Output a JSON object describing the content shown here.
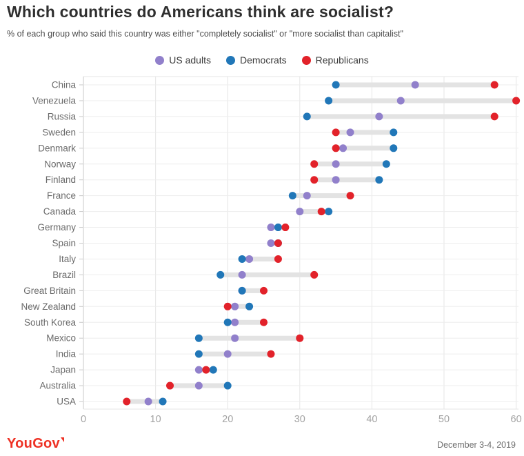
{
  "header": {
    "title": "Which countries do Americans think are socialist?",
    "subtitle": "% of each group who said this country was either \"completely socialist\" or \"more socialist than capitalist\""
  },
  "footer": {
    "brand": "YouGov",
    "date": "December 3-4, 2019"
  },
  "chart_data": {
    "type": "scatter",
    "subtype": "dumbbell-dot-plot",
    "title": "Which countries do Americans think are socialist?",
    "subtitle": "% of each group who said this country was either \"completely socialist\" or \"more socialist than capitalist\"",
    "xlabel": "",
    "ylabel": "",
    "xlim": [
      0,
      60
    ],
    "xticks": [
      0,
      10,
      20,
      30,
      40,
      50,
      60
    ],
    "grid": "vertical gridlines at each tick, faint horizontal line per category row",
    "legend_position": "top-center",
    "connector": "light gray bar spanning min to max value in each row",
    "categories": [
      "China",
      "Venezuela",
      "Russia",
      "Sweden",
      "Denmark",
      "Norway",
      "Finland",
      "France",
      "Canada",
      "Germany",
      "Spain",
      "Italy",
      "Brazil",
      "Great Britain",
      "New Zealand",
      "South Korea",
      "Mexico",
      "India",
      "Japan",
      "Australia",
      "USA"
    ],
    "series": [
      {
        "name": "US adults",
        "color": "#9180CB",
        "values": [
          46,
          44,
          41,
          37,
          36,
          35,
          35,
          31,
          30,
          26,
          26,
          23,
          22,
          22,
          21,
          21,
          21,
          20,
          16,
          16,
          9
        ]
      },
      {
        "name": "Democrats",
        "color": "#2177B8",
        "values": [
          35,
          34,
          31,
          43,
          43,
          42,
          41,
          29,
          34,
          27,
          27,
          22,
          19,
          22,
          23,
          20,
          16,
          16,
          18,
          20,
          11
        ]
      },
      {
        "name": "Republicans",
        "color": "#E2222A",
        "values": [
          57,
          60,
          57,
          35,
          35,
          32,
          32,
          37,
          33,
          28,
          27,
          27,
          32,
          25,
          20,
          25,
          30,
          26,
          17,
          12,
          6
        ]
      }
    ],
    "colors": {
      "connector_bar": "#e3e3e3",
      "row_line": "#ededed",
      "grid_line": "#e5e5e5",
      "axis_line": "#c9c9c9",
      "tick_label": "#a3a3a3",
      "category_label": "#6a6a6a"
    }
  }
}
